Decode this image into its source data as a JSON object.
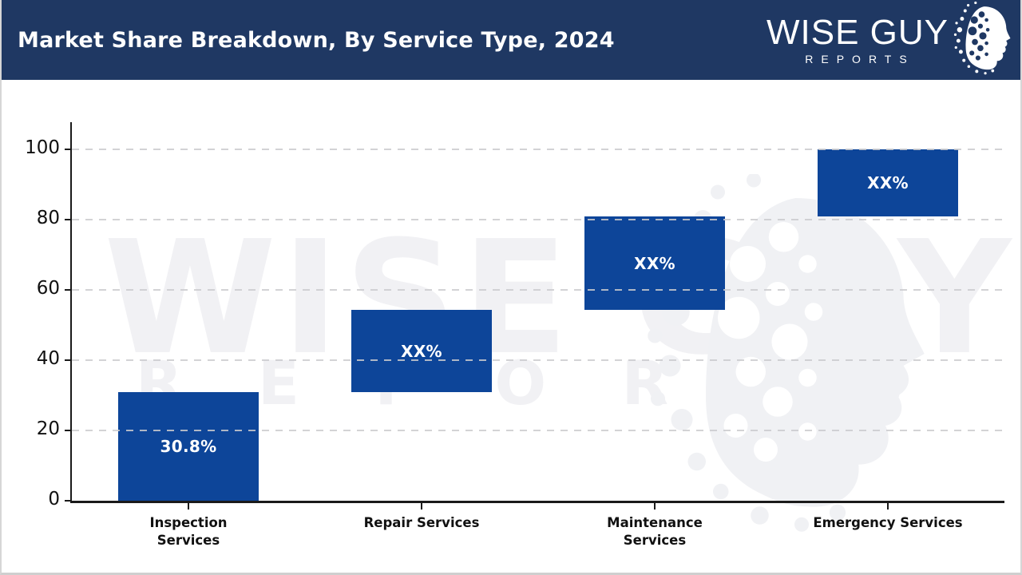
{
  "header": {
    "title": "Market Share Breakdown, By Service Type, 2024",
    "brand": {
      "name": "WISE GUY",
      "subname": "REPORTS"
    }
  },
  "watermark": {
    "line1": "WISE GUY",
    "line2": "R E P O R T S"
  },
  "colors": {
    "header_bg": "#1f3863",
    "bar": "#0d4599",
    "bar_label": "#ffffff",
    "grid": "#cbcbce",
    "axis": "#1a1a1a",
    "watermark": "#f1f1f4"
  },
  "chart_data": {
    "type": "bar",
    "subtype": "waterfall-breakdown",
    "title": "Market Share Breakdown, By Service Type, 2024",
    "categories": [
      "Inspection Services",
      "Repair Services",
      "Maintenance Services",
      "Emergency Services"
    ],
    "bars": [
      {
        "category": "Inspection Services",
        "lines": [
          "Inspection",
          "Services"
        ],
        "start": 0,
        "end": 30.8,
        "label": "30.8%"
      },
      {
        "category": "Repair Services",
        "lines": [
          "Repair Services"
        ],
        "start": 30.8,
        "end": 54.3,
        "label": "XX%"
      },
      {
        "category": "Maintenance Services",
        "lines": [
          "Maintenance",
          "Services"
        ],
        "start": 54.3,
        "end": 80.9,
        "label": "XX%"
      },
      {
        "category": "Emergency Services",
        "lines": [
          "Emergency Services"
        ],
        "start": 80.9,
        "end": 100,
        "label": "XX%"
      }
    ],
    "xlabel": "",
    "ylabel": "",
    "ylim": [
      0,
      100
    ],
    "yticks": [
      0,
      20,
      40,
      60,
      80,
      100
    ],
    "grid": "horizontal-dashed",
    "legend": "none",
    "bar_color": "#0d4599",
    "bar_label_color": "#ffffff"
  }
}
